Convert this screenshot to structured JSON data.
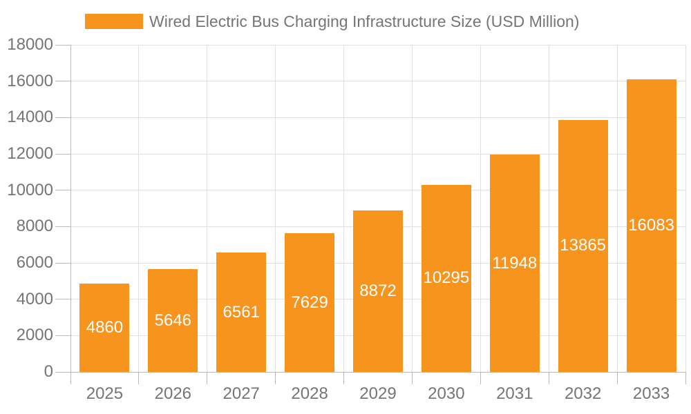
{
  "chart_data": {
    "type": "bar",
    "title": "Wired Electric Bus Charging Infrastructure Size (USD Million)",
    "categories": [
      "2025",
      "2026",
      "2027",
      "2028",
      "2029",
      "2030",
      "2031",
      "2032",
      "2033"
    ],
    "values": [
      4860,
      5646,
      6561,
      7629,
      8872,
      10295,
      11948,
      13865,
      16083
    ],
    "xlabel": "",
    "ylabel": "",
    "ylim": [
      0,
      18000
    ],
    "ytick_interval": 2000,
    "ytick_labels": [
      "0",
      "2000",
      "4000",
      "6000",
      "8000",
      "10000",
      "12000",
      "14000",
      "16000",
      "18000"
    ],
    "grid": true,
    "legend_position": "top-left",
    "value_label_position": "inside-center",
    "colors": {
      "bar": "#F7941E",
      "grid": "#E0E0E0",
      "axis": "#B9B9B9",
      "text": "#757575",
      "value_label": "#FFFFFF",
      "background": "#FFFFFF"
    }
  }
}
